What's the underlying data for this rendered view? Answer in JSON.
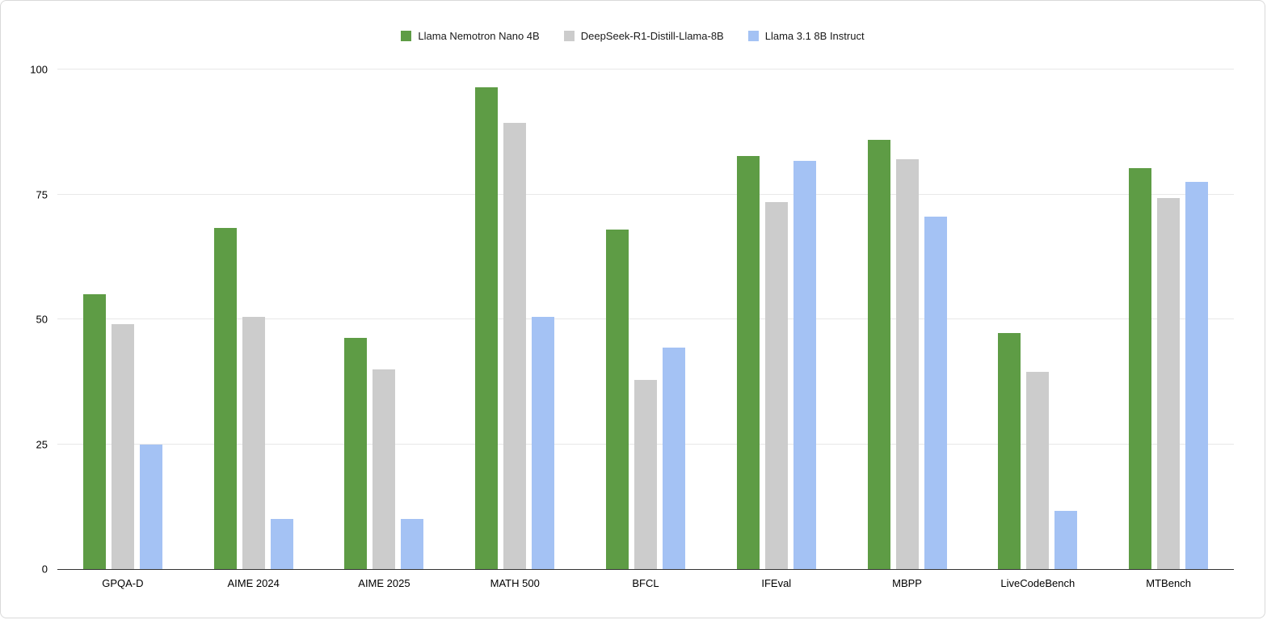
{
  "chart_data": {
    "type": "bar",
    "title": "",
    "xlabel": "",
    "ylabel": "",
    "categories": [
      "GPQA-D",
      "AIME 2024",
      "AIME 2025",
      "MATH 500",
      "BFCL",
      "IFEval",
      "MBPP",
      "LiveCodeBench",
      "MTBench"
    ],
    "series": [
      {
        "name": "Llama Nemotron Nano 4B",
        "color": "#5e9c45",
        "values": [
          55,
          68.3,
          46.2,
          96.5,
          68,
          82.7,
          86,
          47.3,
          80.2
        ]
      },
      {
        "name": "DeepSeek-R1-Distill-Llama-8B",
        "color": "#cccccc",
        "values": [
          49,
          50.5,
          40,
          89.3,
          37.8,
          73.5,
          82,
          39.5,
          74.3
        ]
      },
      {
        "name": "Llama 3.1 8B Instruct",
        "color": "#a4c2f4",
        "values": [
          25,
          10,
          10,
          50.5,
          44.3,
          81.7,
          70.5,
          11.7,
          77.5
        ]
      }
    ],
    "ylim": [
      0,
      100
    ],
    "yticks": [
      0,
      25,
      50,
      75,
      100
    ],
    "grid": true,
    "legend_position": "top",
    "background": "#ffffff",
    "gridline_color": "#e8e8e8",
    "axis_color": "#333333"
  }
}
